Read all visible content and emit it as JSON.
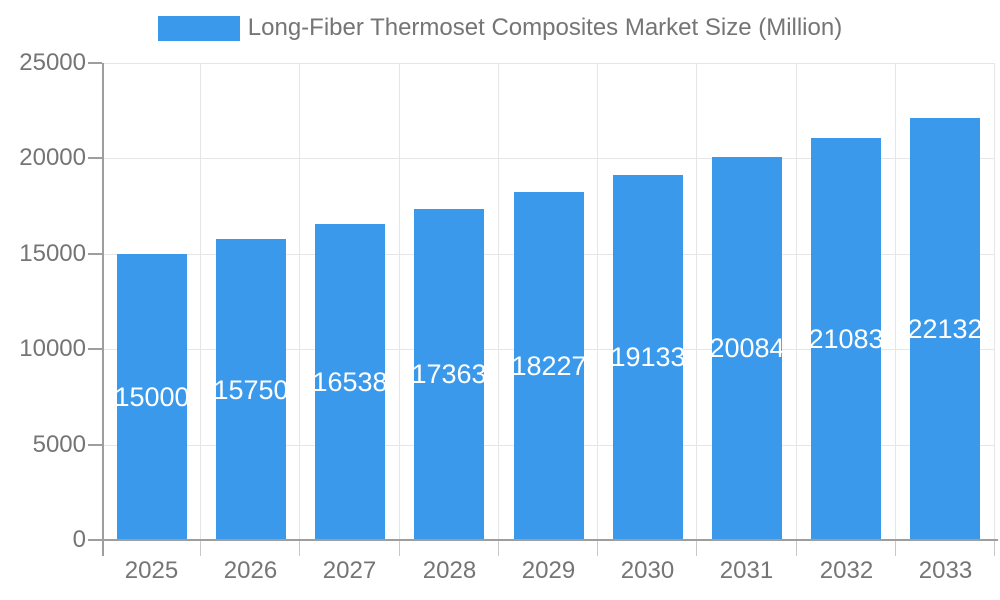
{
  "chart_data": {
    "type": "bar",
    "title": "Long-Fiber Thermoset Composites Market Size (Million)",
    "categories": [
      "2025",
      "2026",
      "2027",
      "2028",
      "2029",
      "2030",
      "2031",
      "2032",
      "2033"
    ],
    "values": [
      15000,
      15750,
      16538,
      17363,
      18227,
      19133,
      20084,
      21083,
      22132
    ],
    "xlabel": "",
    "ylabel": "",
    "ylim": [
      0,
      25000
    ],
    "yticks": [
      0,
      5000,
      10000,
      15000,
      20000,
      25000
    ],
    "grid": true,
    "legend_position": "top",
    "value_label_position": "inside-center"
  },
  "colors": {
    "bar": "#3b99ec",
    "bar_label": "#ffffff",
    "axis_text": "#757575",
    "legend_text": "#757575",
    "gridline": "#e6e6e6",
    "axis_line": "#9e9e9e",
    "tick_mark": "#9e9e9e",
    "category_tick": "#c8c8c8",
    "background": "#ffffff"
  }
}
